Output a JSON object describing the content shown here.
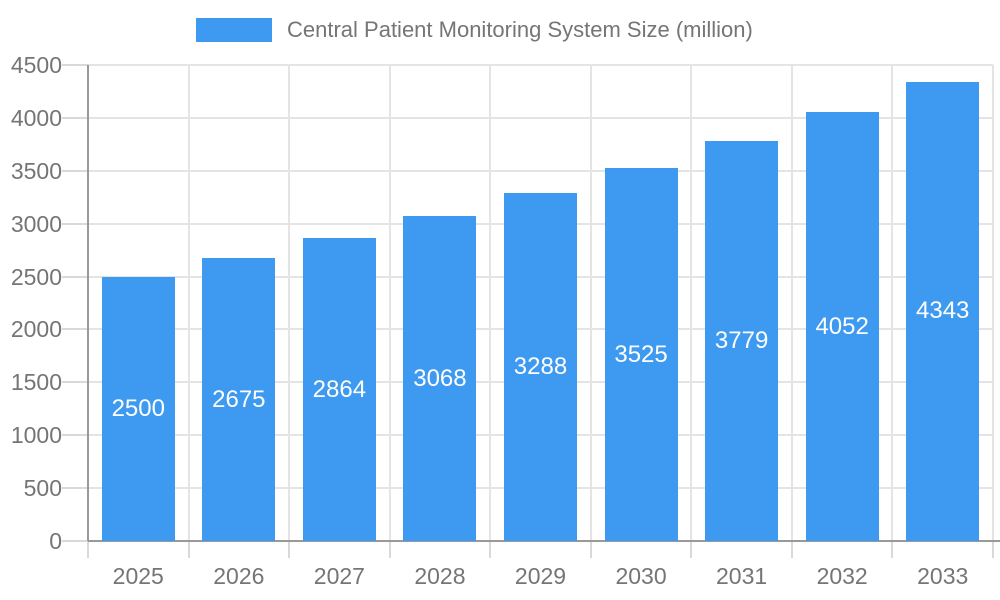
{
  "legend": {
    "label": "Central Patient Monitoring System Size (million)"
  },
  "chart_data": {
    "type": "bar",
    "title": "Central Patient Monitoring System Size (million)",
    "series_name": "Central Patient Monitoring System Size (million)",
    "categories": [
      "2025",
      "2026",
      "2027",
      "2028",
      "2029",
      "2030",
      "2031",
      "2032",
      "2033"
    ],
    "values": [
      2500,
      2675,
      2864,
      3068,
      3288,
      3525,
      3779,
      4052,
      4343
    ],
    "bar_labels": [
      "2500",
      "2675",
      "2864",
      "3068",
      "3288",
      "3525",
      "3779",
      "4052",
      "4343"
    ],
    "xlabel": "",
    "ylabel": "",
    "ylim": [
      0,
      4500
    ],
    "ytick_step": 500,
    "ytick_labels": [
      "0",
      "500",
      "1000",
      "1500",
      "2000",
      "2500",
      "3000",
      "3500",
      "4000",
      "4500"
    ],
    "grid": true,
    "legend_position": "top"
  },
  "colors": {
    "bar": "#3D9AF0",
    "axis": "#999999",
    "grid": "#E4E4E4",
    "tick": "#D9D9D9",
    "text": "#757575",
    "bar_label": "#FFFFFF",
    "background": "#FFFFFF"
  }
}
